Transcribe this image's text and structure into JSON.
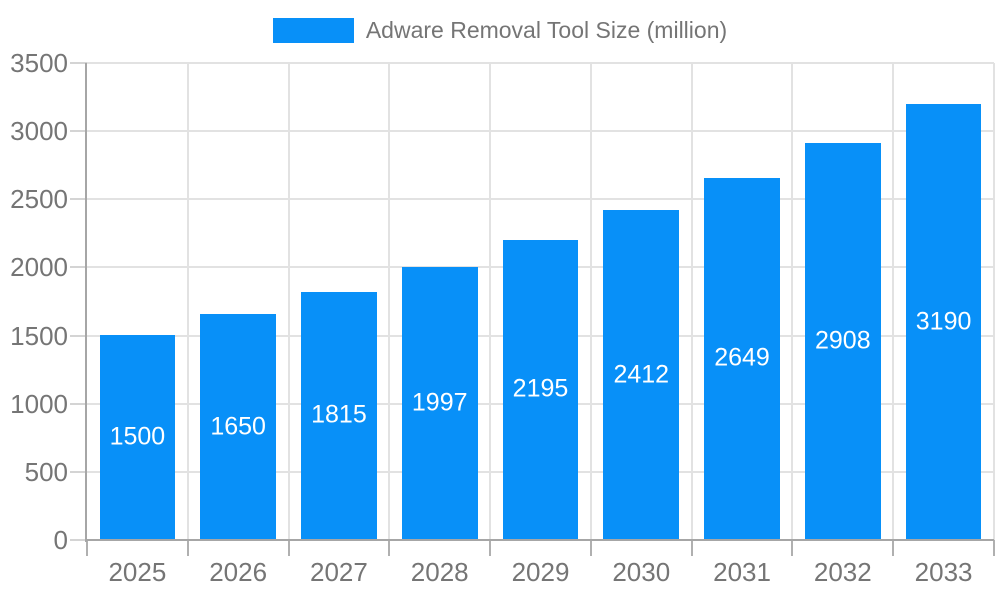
{
  "legend": {
    "label": "Adware Removal Tool Size (million)"
  },
  "colors": {
    "bar": "#0890F8",
    "grid": "#E2E2E2",
    "axis": "#A6A6A6",
    "bottom_tick": "#B0B0B0",
    "left_tick": "#D4D4D4",
    "text": "#757575",
    "value_label": "#FFFFFF",
    "background": "#FFFFFF"
  },
  "chart_data": {
    "type": "bar",
    "title": "Adware Removal Tool Size (million)",
    "categories": [
      "2025",
      "2026",
      "2027",
      "2028",
      "2029",
      "2030",
      "2031",
      "2032",
      "2033"
    ],
    "values": [
      1500,
      1650,
      1815,
      1997,
      2195,
      2412,
      2649,
      2908,
      3190
    ],
    "xlabel": "",
    "ylabel": "",
    "ylim": [
      0,
      3500
    ],
    "yticks": [
      0,
      500,
      1000,
      1500,
      2000,
      2500,
      3000,
      3500
    ],
    "grid": true,
    "legend_position": "top",
    "bar_value_labels": "inside-center-white"
  }
}
